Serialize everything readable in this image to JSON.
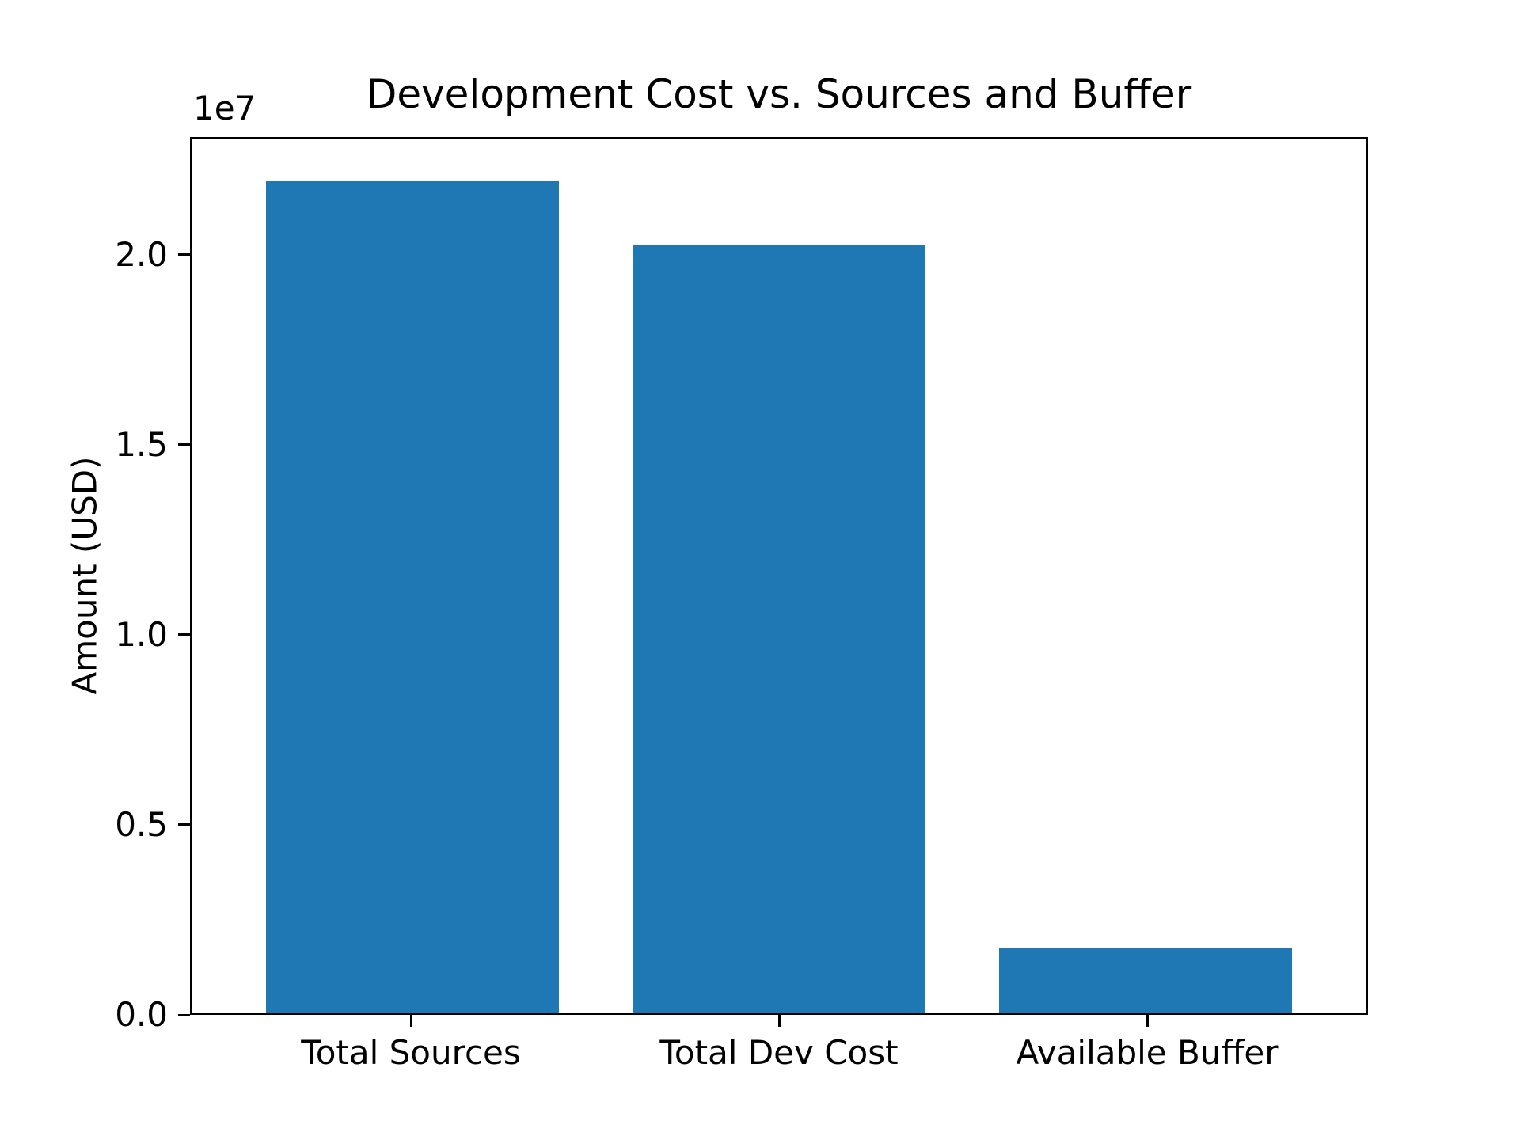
{
  "chart_data": {
    "type": "bar",
    "title": "Development Cost vs. Sources and Buffer",
    "categories": [
      "Total Sources",
      "Total Dev Cost",
      "Available Buffer"
    ],
    "values": [
      22000000,
      20300000,
      1700000
    ],
    "xlabel": "",
    "ylabel": "Amount (USD)",
    "ylim": [
      0,
      23100000
    ],
    "yticks": [
      0,
      5000000,
      10000000,
      15000000,
      20000000
    ],
    "ytick_labels": [
      "0.0",
      "0.5",
      "1.0",
      "1.5",
      "2.0"
    ],
    "offset_text": "1e7",
    "bar_color": "#1f77b4",
    "background_color": "#ffffff",
    "grid": false,
    "legend": null
  }
}
